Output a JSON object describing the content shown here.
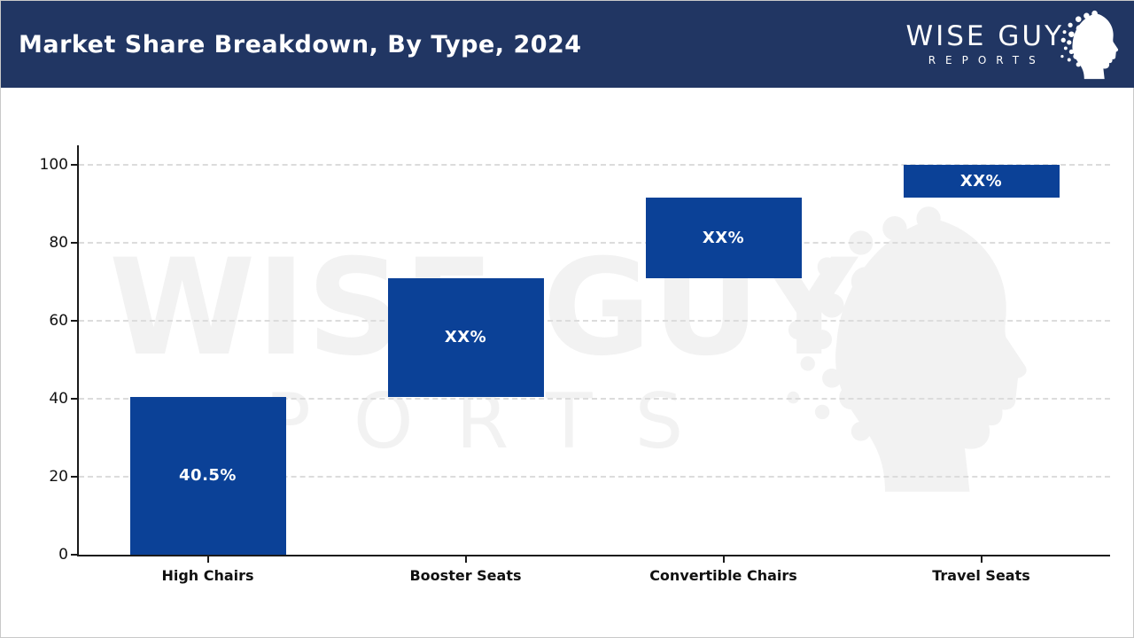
{
  "header": {
    "title": "Market Share Breakdown, By Type, 2024",
    "brand": {
      "name": "WISE GUY",
      "subtitle": "REPORTS"
    }
  },
  "watermark": {
    "line1": "WISE GUY",
    "line2": "PORTS"
  },
  "colors": {
    "header_bg": "#213663",
    "bar": "#0b4197",
    "bar_label": "#ffffff",
    "watermark": "#f2f2f2",
    "gridline": "#dcdcdc",
    "axis": "#1a1a1a",
    "card_border": "#c9c9c9",
    "tick_text": "#111111"
  },
  "chart_data": {
    "type": "bar",
    "subtype": "waterfall",
    "title": "Market Share Breakdown, By Type, 2024",
    "categories": [
      "High Chairs",
      "Booster Seats",
      "Convertible Chairs",
      "Travel Seats"
    ],
    "series": [
      {
        "name": "Market Share",
        "segments": [
          {
            "category": "High Chairs",
            "start": 0,
            "end": 40.5,
            "label": "40.5%"
          },
          {
            "category": "Booster Seats",
            "start": 40.5,
            "end": 71,
            "label": "XX%"
          },
          {
            "category": "Convertible Chairs",
            "start": 71,
            "end": 91.5,
            "label": "XX%"
          },
          {
            "category": "Travel Seats",
            "start": 91.5,
            "end": 100,
            "label": "XX%"
          }
        ]
      }
    ],
    "xlabel": "",
    "ylabel": "",
    "ylim": [
      0,
      100
    ],
    "yticks": [
      0,
      20,
      40,
      60,
      80,
      100
    ],
    "grid": "horizontal-dashed",
    "legend": "none",
    "bar_value_labels_inside": true
  }
}
